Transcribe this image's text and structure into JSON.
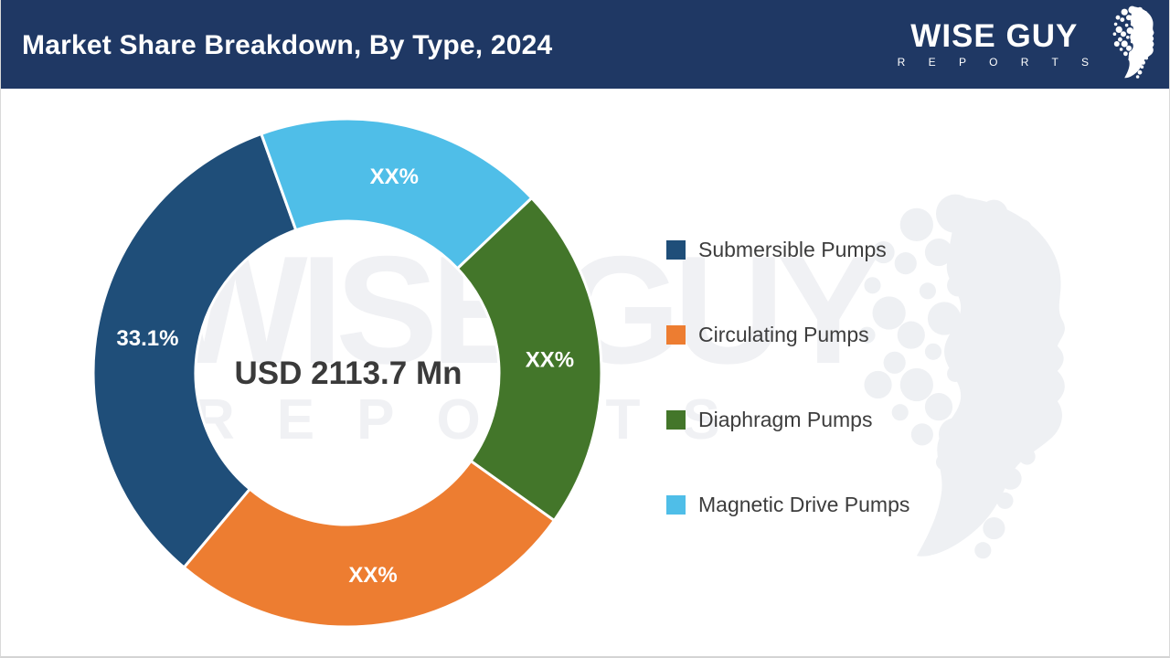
{
  "header": {
    "title": "Market Share Breakdown, By Type, 2024",
    "logo": {
      "line1": "WISE GUY",
      "line2": "R E P O R T S"
    }
  },
  "watermark": {
    "line1": "WISE GUY",
    "line2": "REPORTS"
  },
  "chart_data": {
    "type": "pie",
    "subtype": "donut",
    "title": "Market Share Breakdown, By Type, 2024",
    "center_label": "USD 2113.7 Mn",
    "legend_position": "right",
    "segments": [
      {
        "name": "Submersible Pumps",
        "display_label": "33.1%",
        "value_pct": 33.1,
        "color": "#1F4E79",
        "start_deg": 109.8,
        "end_deg": 230.0
      },
      {
        "name": "Circulating Pumps",
        "display_label": "XX%",
        "value_pct": 26.3,
        "color": "#ED7D31",
        "start_deg": 230.0,
        "end_deg": 324.5
      },
      {
        "name": "Diaphragm Pumps",
        "display_label": "XX%",
        "value_pct": 22.0,
        "color": "#43762A",
        "start_deg": 324.5,
        "end_deg": 403.5
      },
      {
        "name": "Magnetic Drive Pumps",
        "display_label": "XX%",
        "value_pct": 18.6,
        "color": "#4FBEE8",
        "start_deg": 43.5,
        "end_deg": 109.8
      }
    ]
  },
  "colors": {
    "header_bg": "#1F3864",
    "watermark": "#f0f1f4",
    "center_text": "#3a3a3a",
    "legend_text": "#3d3d3d"
  }
}
